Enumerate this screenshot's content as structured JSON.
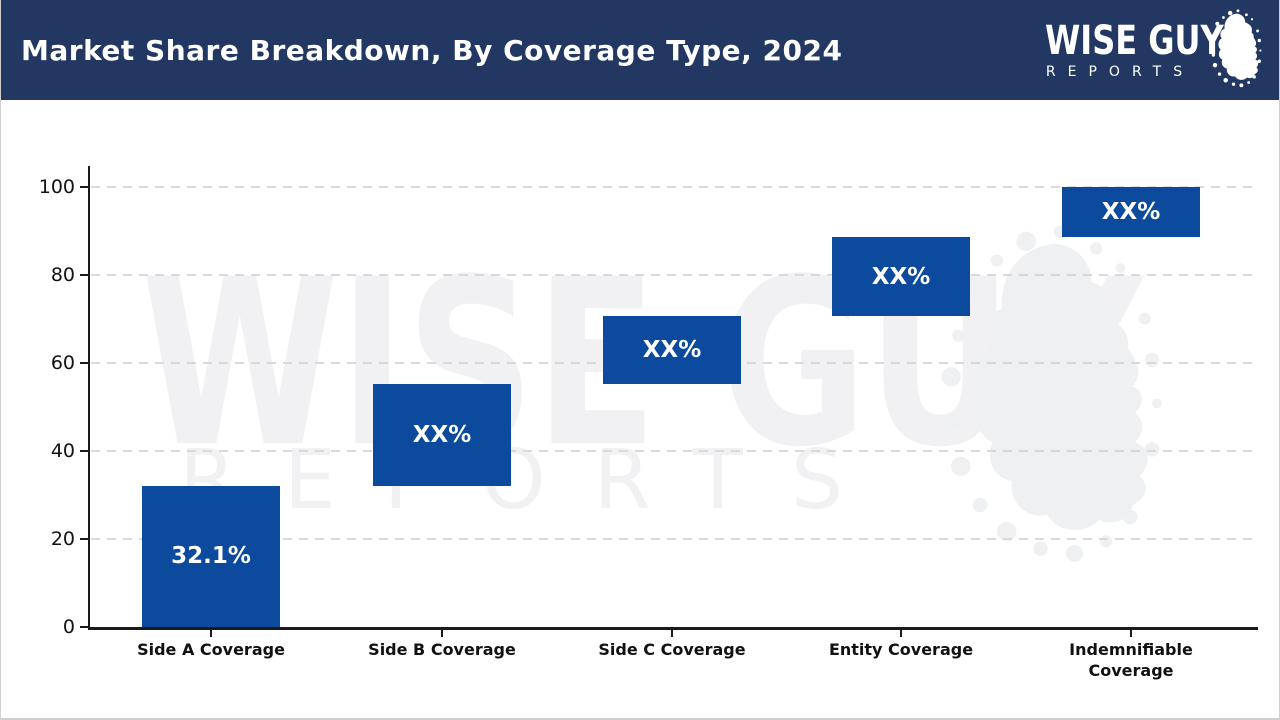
{
  "header": {
    "title": "Market Share Breakdown, By Coverage Type, 2024",
    "bg_color": "#223761",
    "logo": {
      "line1": "WISE GUY",
      "line2": "REPORTS"
    }
  },
  "watermark": {
    "line1": "WISE GUY",
    "line2": "REPORTS"
  },
  "chart_data": {
    "type": "bar",
    "subtype": "waterfall",
    "title": "Market Share Breakdown, By Coverage Type, 2024",
    "categories": [
      "Side A Coverage",
      "Side B Coverage",
      "Side C Coverage",
      "Entity Coverage",
      "Indemnifiable Coverage"
    ],
    "segments": [
      {
        "category": "Side A Coverage",
        "start": 0,
        "end": 32.1,
        "label": "32.1%"
      },
      {
        "category": "Side B Coverage",
        "start": 32.1,
        "end": 55.2,
        "label": "XX%"
      },
      {
        "category": "Side C Coverage",
        "start": 55.2,
        "end": 70.7,
        "label": "XX%"
      },
      {
        "category": "Entity Coverage",
        "start": 70.7,
        "end": 88.6,
        "label": "XX%"
      },
      {
        "category": "Indemnifiable Coverage",
        "start": 88.6,
        "end": 100,
        "label": "XX%"
      }
    ],
    "yticks": [
      0,
      20,
      40,
      60,
      80,
      100
    ],
    "ylim": [
      0,
      104
    ],
    "xlabel": "",
    "ylabel": "",
    "legend": "none",
    "grid": {
      "horizontal": true,
      "style": "dashed",
      "color": "#d9d9d9"
    },
    "bar_color": "#0b4a9c",
    "bar_label_color": "#ffffff",
    "axis_color": "#1a1a1a"
  }
}
